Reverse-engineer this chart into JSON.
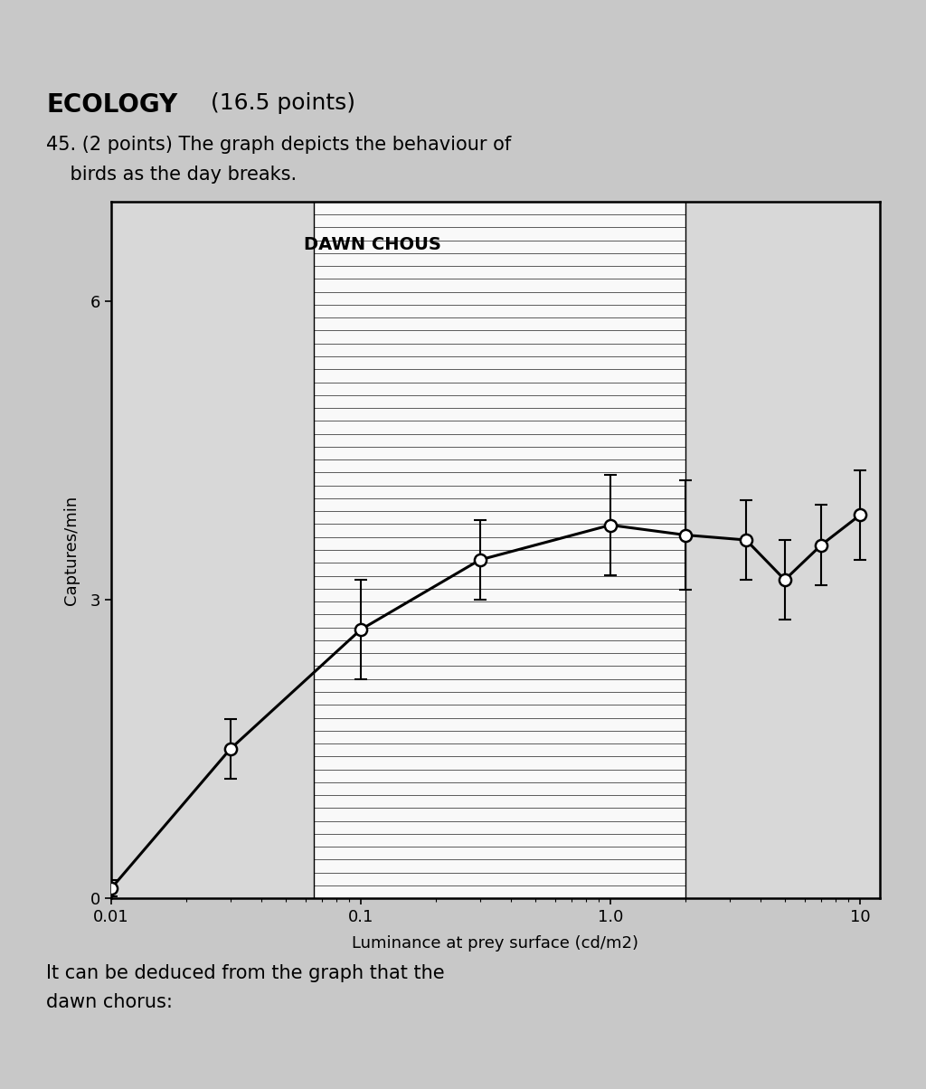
{
  "title": "DAWN CHOUS",
  "xlabel": "Luminance at prey surface (cd/m2)",
  "ylabel": "Captures/min",
  "x_data": [
    0.01,
    0.03,
    0.1,
    0.3,
    1.0,
    2.0,
    3.5,
    5.0,
    7.0,
    10.0
  ],
  "y_data": [
    0.1,
    1.5,
    2.7,
    3.4,
    3.75,
    3.65,
    3.6,
    3.2,
    3.55,
    3.85
  ],
  "y_err_low": [
    0.08,
    0.3,
    0.5,
    0.4,
    0.5,
    0.55,
    0.4,
    0.4,
    0.4,
    0.45
  ],
  "y_err_high": [
    0.08,
    0.3,
    0.5,
    0.4,
    0.5,
    0.55,
    0.4,
    0.4,
    0.4,
    0.45
  ],
  "dawn_x_start": 0.065,
  "dawn_x_end": 2.0,
  "ylim": [
    0,
    7
  ],
  "xlim_min": 0.01,
  "xlim_max": 12.0,
  "yticks": [
    0,
    3,
    6
  ],
  "xtick_positions": [
    0.01,
    0.1,
    1.0,
    10.0
  ],
  "xtick_labels": [
    "0.01",
    "0.1",
    "1.0",
    "10"
  ],
  "bg_color": "#c8c8c8",
  "plot_bg_color": "#d8d8d8",
  "line_color": "#000000",
  "marker_color": "#ffffff",
  "marker_edge_color": "#000000",
  "ecology_text": "ECOLOGY",
  "points_text": " (16.5 points)",
  "q45_text": "45. (2 points) The graph depicts the behaviour of",
  "q45_text2": "    birds as the day breaks.",
  "footer1": "It can be deduced from the graph that the",
  "footer2": "dawn chorus:"
}
